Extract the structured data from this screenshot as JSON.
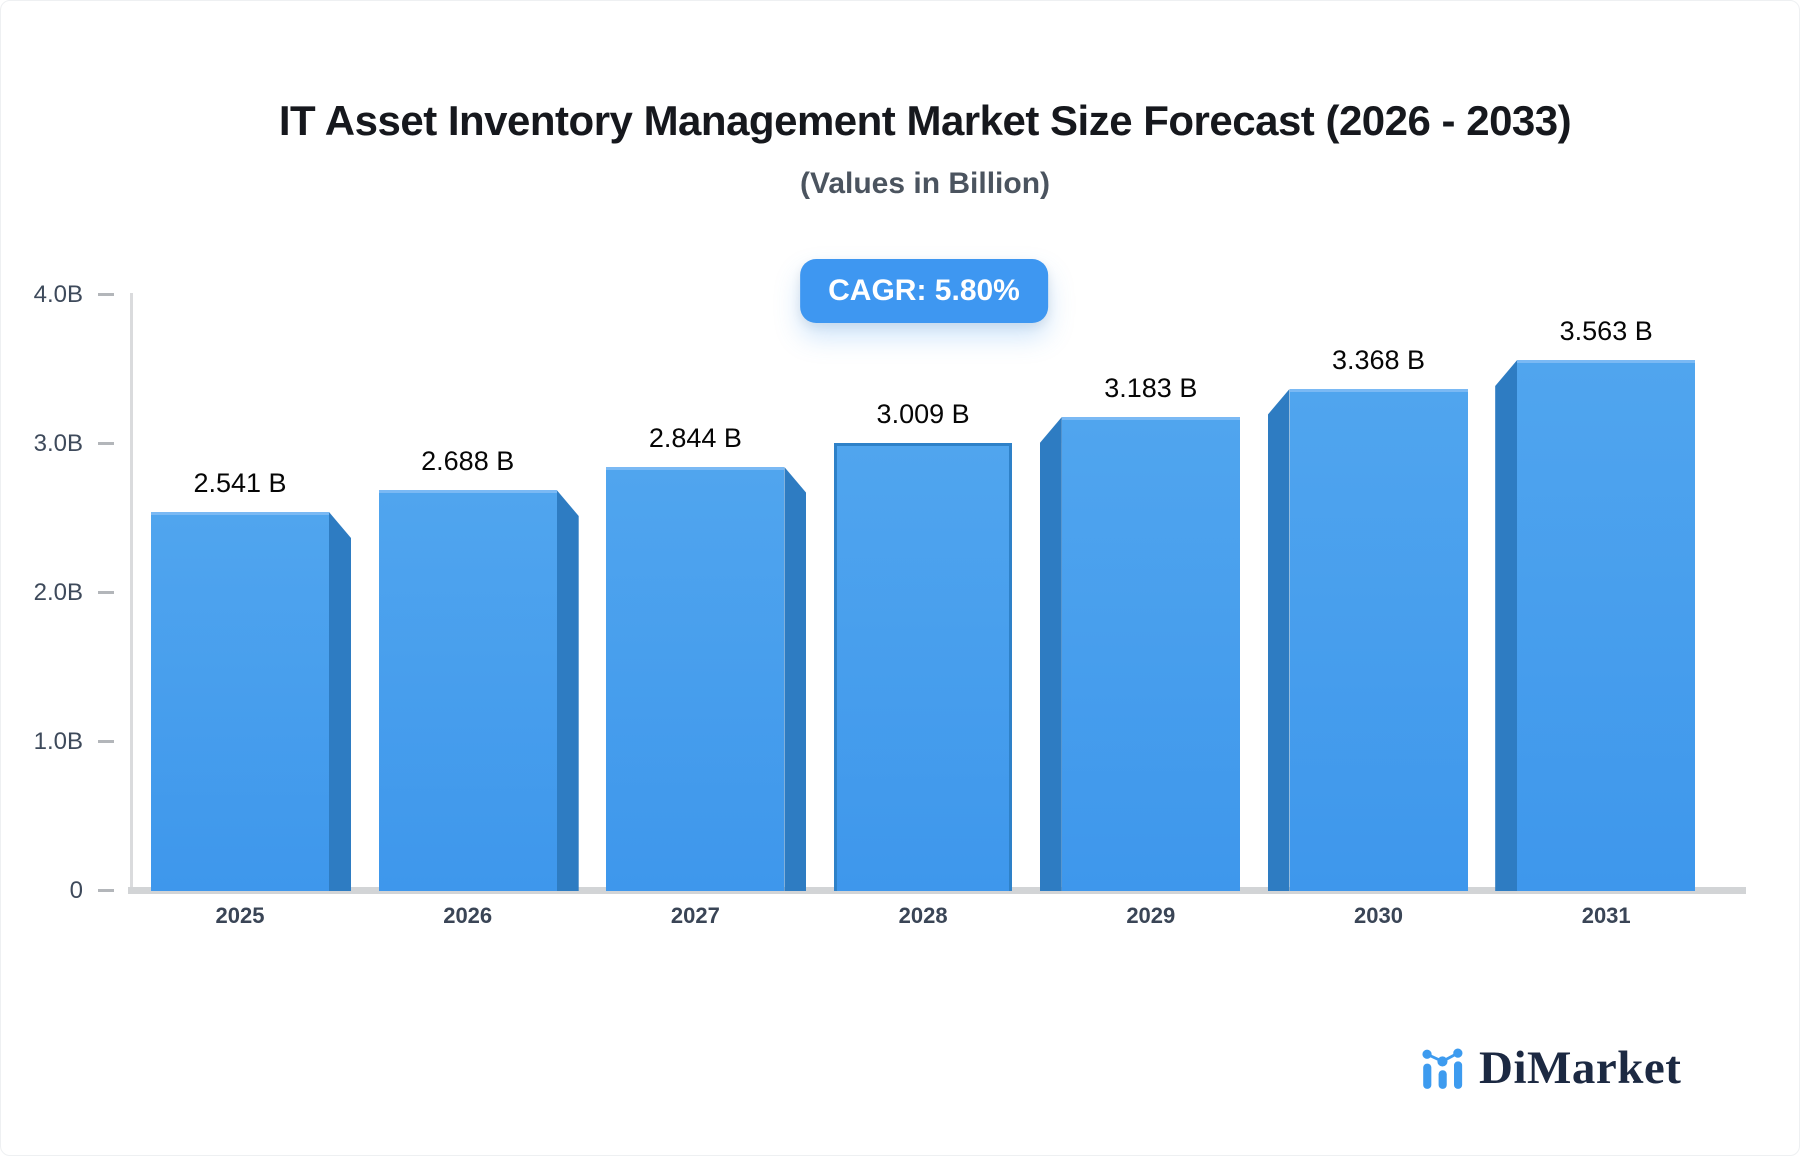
{
  "header": {
    "title": "IT Asset Inventory Management Market Size Forecast (2026 - 2033)",
    "subtitle": "(Values in Billion)"
  },
  "badge": {
    "label": "CAGR: 5.80%"
  },
  "chart_data": {
    "type": "bar",
    "title": "IT Asset Inventory Management Market Size Forecast (2026 - 2033)",
    "subtitle": "(Values in Billion)",
    "cagr_label": "CAGR: 5.80%",
    "categories": [
      "2025",
      "2026",
      "2027",
      "2028",
      "2029",
      "2030",
      "2031"
    ],
    "values": [
      2.541,
      2.688,
      2.844,
      3.009,
      3.183,
      3.368,
      3.563
    ],
    "value_labels": [
      "2.541 B",
      "2.688 B",
      "2.844 B",
      "3.009 B",
      "3.183 B",
      "3.368 B",
      "3.563 B"
    ],
    "xlabel": "",
    "ylabel": "",
    "ylim": [
      0,
      4
    ],
    "ytick_labels": [
      "0",
      "1.0B",
      "2.0B",
      "3.0B",
      "4.0B"
    ],
    "grid": "off",
    "legend": "none",
    "bar_face_color_top": "#50A5EE",
    "bar_face_color_bottom": "#3E97EC",
    "bar_side_color": "#2E7CC2",
    "badge_color": "#3E97F1",
    "axis_label_color": "#3E4A5B"
  },
  "logo": {
    "icon": "dimarket-bars-icon",
    "text": "DiMarket",
    "text_color": "#1C2942",
    "accent_color": "#3D9BEF"
  }
}
